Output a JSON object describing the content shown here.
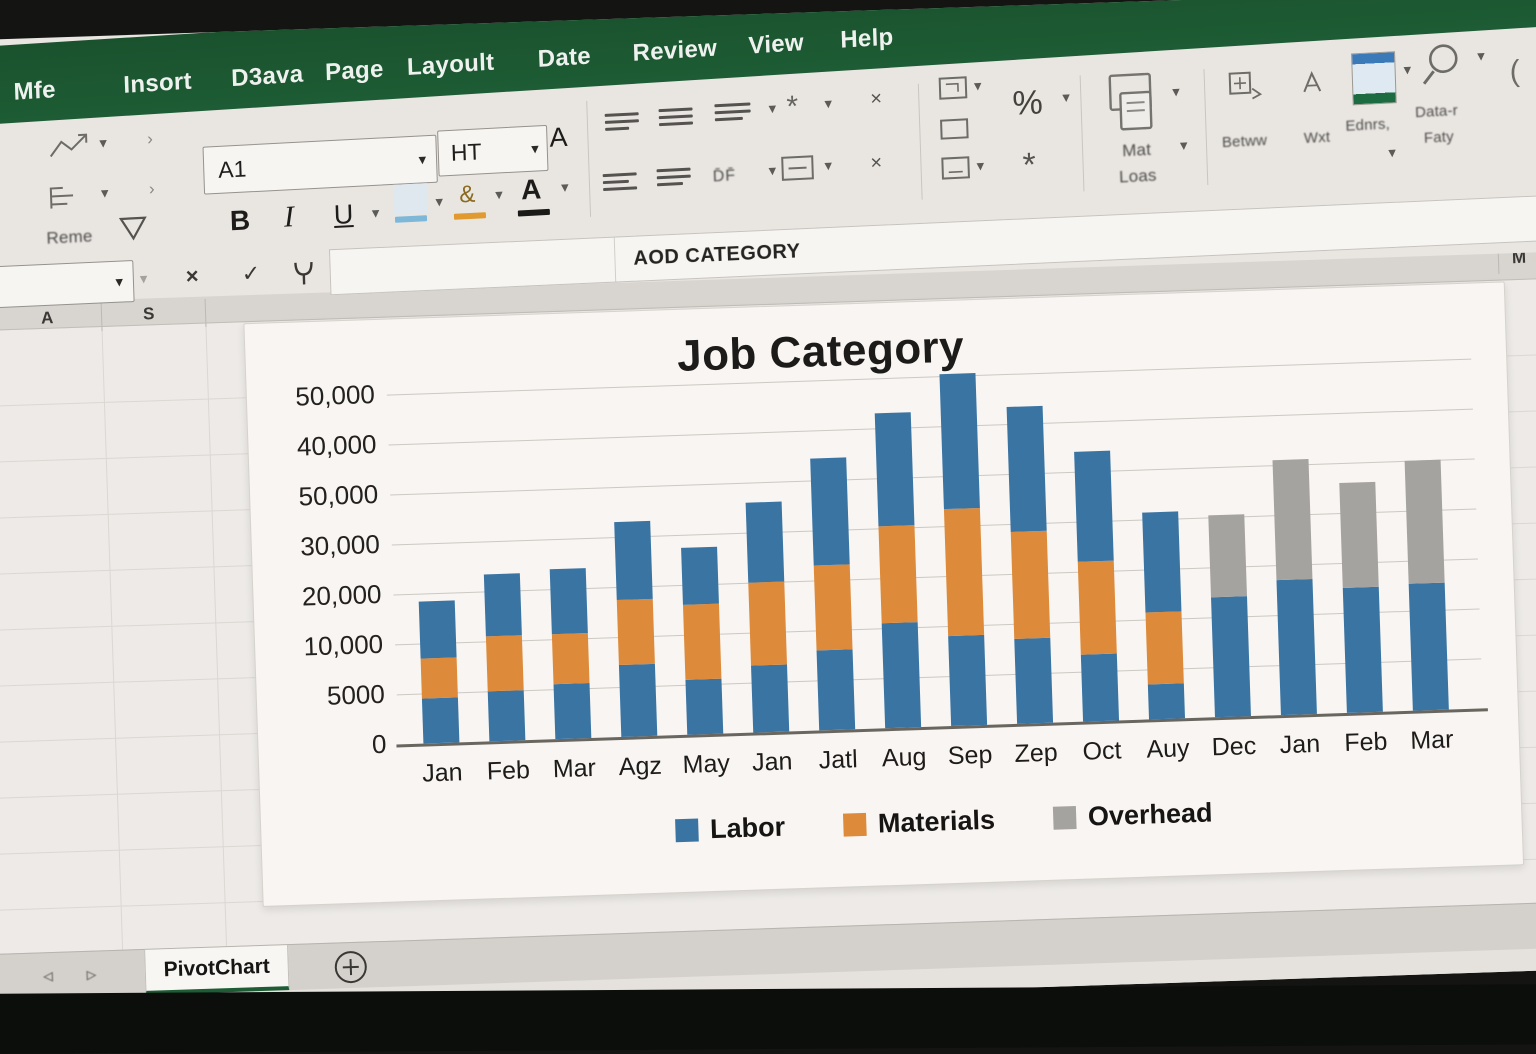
{
  "menubar": {
    "tabs": [
      "Mfe",
      "Insort",
      "D3ava",
      "Page",
      "Layoult",
      "Date",
      "Review",
      "View",
      "Help"
    ]
  },
  "ribbon": {
    "undo_group_label": "Reme",
    "name_box_value": "A1",
    "font_box_value": "HT",
    "font_size_symbol": "A",
    "bold": "B",
    "italic": "I",
    "underline": "U",
    "fill_symbol": "&",
    "font_color_symbol": "A",
    "percent": "%",
    "asterisk": "*",
    "x_mark": "×",
    "paste_label_1": "Mat",
    "paste_label_2": "Loas",
    "cells_label_1": "Betww",
    "cells_label_2": "Wxt",
    "format_table_label": "Ednrs,",
    "find_label_1": "Data-r",
    "find_label_2": "Faty",
    "paren_fragment": "("
  },
  "formula_bar": {
    "cancel": "×",
    "confirm": "✓",
    "value": "AOD CATEGORY"
  },
  "sheet": {
    "col_header_a": "A",
    "col_header_s": "S",
    "col_header_right": "M"
  },
  "tabbar": {
    "sheet_tab": "PivotChart"
  },
  "chart_data": {
    "type": "stacked-bar",
    "title": "Job Category",
    "unit_note": "units are vertical gridline steps as printed on the distorted axis; one step = 50px; axis tick sequence bottom-to-top as displayed",
    "y_ticks_bottom_to_top": [
      "0",
      "5000",
      "10,000",
      "20,000",
      "30,000",
      "50,000",
      "40,000",
      "50,000"
    ],
    "legend": [
      "Labor",
      "Materials",
      "Overhead"
    ],
    "legend_position": "bottom",
    "grid": true,
    "colors": {
      "Labor": "#3a74a3",
      "Materials": "#dd8a3a",
      "Overhead": "#a5a3a0"
    },
    "categories": [
      "Jan",
      "Feb",
      "Mar",
      "Agz",
      "May",
      "Jan",
      "Jatl",
      "Aug",
      "Sep",
      "Zep",
      "Oct",
      "Auy",
      "Dec",
      "Jan",
      "Feb",
      "Mar"
    ],
    "bars": [
      {
        "month": "Jan",
        "segments": [
          {
            "series": "Labor",
            "units": 0.9
          },
          {
            "series": "Materials",
            "units": 0.8
          },
          {
            "series": "Labor",
            "units": 1.15
          }
        ]
      },
      {
        "month": "Feb",
        "segments": [
          {
            "series": "Labor",
            "units": 1.0
          },
          {
            "series": "Materials",
            "units": 1.1
          },
          {
            "series": "Labor",
            "units": 1.25
          }
        ]
      },
      {
        "month": "Mar",
        "segments": [
          {
            "series": "Labor",
            "units": 1.1
          },
          {
            "series": "Materials",
            "units": 1.0
          },
          {
            "series": "Labor",
            "units": 1.3
          }
        ]
      },
      {
        "month": "Agz",
        "segments": [
          {
            "series": "Labor",
            "units": 1.45
          },
          {
            "series": "Materials",
            "units": 1.3
          },
          {
            "series": "Labor",
            "units": 1.55
          }
        ]
      },
      {
        "month": "May",
        "segments": [
          {
            "series": "Labor",
            "units": 1.1
          },
          {
            "series": "Materials",
            "units": 1.5
          },
          {
            "series": "Labor",
            "units": 1.15
          }
        ]
      },
      {
        "month": "Jan",
        "segments": [
          {
            "series": "Labor",
            "units": 1.35
          },
          {
            "series": "Materials",
            "units": 1.65
          },
          {
            "series": "Labor",
            "units": 1.6
          }
        ]
      },
      {
        "month": "Jatl",
        "segments": [
          {
            "series": "Labor",
            "units": 1.6
          },
          {
            "series": "Materials",
            "units": 1.7
          },
          {
            "series": "Labor",
            "units": 2.15
          }
        ]
      },
      {
        "month": "Aug",
        "segments": [
          {
            "series": "Labor",
            "units": 2.1
          },
          {
            "series": "Materials",
            "units": 1.95
          },
          {
            "series": "Labor",
            "units": 2.25
          }
        ]
      },
      {
        "month": "Sep",
        "segments": [
          {
            "series": "Labor",
            "units": 1.8
          },
          {
            "series": "Materials",
            "units": 2.55
          },
          {
            "series": "Labor",
            "units": 2.7
          }
        ]
      },
      {
        "month": "Zep",
        "segments": [
          {
            "series": "Labor",
            "units": 1.7
          },
          {
            "series": "Materials",
            "units": 2.15
          },
          {
            "series": "Labor",
            "units": 2.5
          }
        ]
      },
      {
        "month": "Oct",
        "segments": [
          {
            "series": "Labor",
            "units": 1.35
          },
          {
            "series": "Materials",
            "units": 1.85
          },
          {
            "series": "Labor",
            "units": 2.2
          }
        ]
      },
      {
        "month": "Auy",
        "segments": [
          {
            "series": "Labor",
            "units": 0.7
          },
          {
            "series": "Materials",
            "units": 1.45
          },
          {
            "series": "Labor",
            "units": 2.0
          }
        ]
      },
      {
        "month": "Dec",
        "segments": [
          {
            "series": "Labor",
            "units": 2.4
          },
          {
            "series": "Overhead",
            "units": 1.65
          }
        ]
      },
      {
        "month": "Jan",
        "segments": [
          {
            "series": "Labor",
            "units": 2.7
          },
          {
            "series": "Overhead",
            "units": 2.4
          }
        ]
      },
      {
        "month": "Feb",
        "segments": [
          {
            "series": "Labor",
            "units": 2.5
          },
          {
            "series": "Overhead",
            "units": 2.1
          }
        ]
      },
      {
        "month": "Mar",
        "segments": [
          {
            "series": "Labor",
            "units": 2.55
          },
          {
            "series": "Overhead",
            "units": 2.45
          }
        ]
      }
    ]
  }
}
